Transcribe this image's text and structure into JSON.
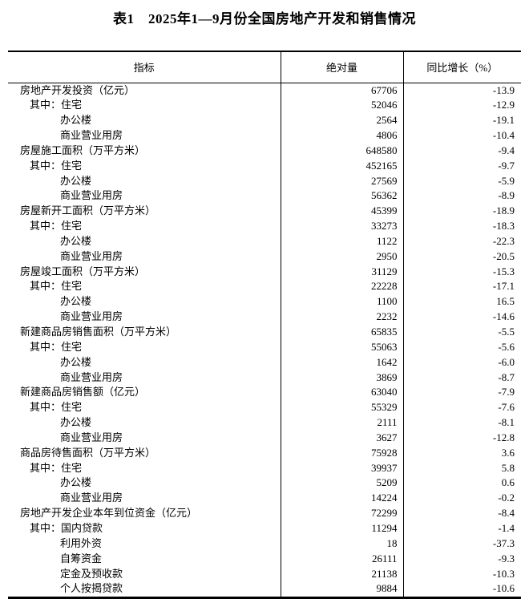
{
  "title": "表1　2025年1—9月份全国房地产开发和销售情况",
  "table": {
    "headers": [
      "指标",
      "绝对量",
      "同比增长（%）"
    ],
    "rows": [
      {
        "indicator": "房地产开发投资（亿元）",
        "indent": 0,
        "absolute": "67706",
        "growth": "-13.9"
      },
      {
        "indicator": "其中：住宅",
        "indent": 1,
        "absolute": "52046",
        "growth": "-12.9"
      },
      {
        "indicator": "办公楼",
        "indent": 2,
        "absolute": "2564",
        "growth": "-19.1"
      },
      {
        "indicator": "商业营业用房",
        "indent": 2,
        "absolute": "4806",
        "growth": "-10.4"
      },
      {
        "indicator": "房屋施工面积（万平方米）",
        "indent": 0,
        "absolute": "648580",
        "growth": "-9.4"
      },
      {
        "indicator": "其中：住宅",
        "indent": 1,
        "absolute": "452165",
        "growth": "-9.7"
      },
      {
        "indicator": "办公楼",
        "indent": 2,
        "absolute": "27569",
        "growth": "-5.9"
      },
      {
        "indicator": "商业营业用房",
        "indent": 2,
        "absolute": "56362",
        "growth": "-8.9"
      },
      {
        "indicator": "房屋新开工面积（万平方米）",
        "indent": 0,
        "absolute": "45399",
        "growth": "-18.9"
      },
      {
        "indicator": "其中：住宅",
        "indent": 1,
        "absolute": "33273",
        "growth": "-18.3"
      },
      {
        "indicator": "办公楼",
        "indent": 2,
        "absolute": "1122",
        "growth": "-22.3"
      },
      {
        "indicator": "商业营业用房",
        "indent": 2,
        "absolute": "2950",
        "growth": "-20.5"
      },
      {
        "indicator": "房屋竣工面积（万平方米）",
        "indent": 0,
        "absolute": "31129",
        "growth": "-15.3"
      },
      {
        "indicator": "其中：住宅",
        "indent": 1,
        "absolute": "22228",
        "growth": "-17.1"
      },
      {
        "indicator": "办公楼",
        "indent": 2,
        "absolute": "1100",
        "growth": "16.5"
      },
      {
        "indicator": "商业营业用房",
        "indent": 2,
        "absolute": "2232",
        "growth": "-14.6"
      },
      {
        "indicator": "新建商品房销售面积（万平方米）",
        "indent": 0,
        "absolute": "65835",
        "growth": "-5.5"
      },
      {
        "indicator": "其中：住宅",
        "indent": 1,
        "absolute": "55063",
        "growth": "-5.6"
      },
      {
        "indicator": "办公楼",
        "indent": 2,
        "absolute": "1642",
        "growth": "-6.0"
      },
      {
        "indicator": "商业营业用房",
        "indent": 2,
        "absolute": "3869",
        "growth": "-8.7"
      },
      {
        "indicator": "新建商品房销售额（亿元）",
        "indent": 0,
        "absolute": "63040",
        "growth": "-7.9"
      },
      {
        "indicator": "其中：住宅",
        "indent": 1,
        "absolute": "55329",
        "growth": "-7.6"
      },
      {
        "indicator": "办公楼",
        "indent": 2,
        "absolute": "2111",
        "growth": "-8.1"
      },
      {
        "indicator": "商业营业用房",
        "indent": 2,
        "absolute": "3627",
        "growth": "-12.8"
      },
      {
        "indicator": "商品房待售面积（万平方米）",
        "indent": 0,
        "absolute": "75928",
        "growth": "3.6"
      },
      {
        "indicator": "其中：住宅",
        "indent": 1,
        "absolute": "39937",
        "growth": "5.8"
      },
      {
        "indicator": "办公楼",
        "indent": 2,
        "absolute": "5209",
        "growth": "0.6"
      },
      {
        "indicator": "商业营业用房",
        "indent": 2,
        "absolute": "14224",
        "growth": "-0.2"
      },
      {
        "indicator": "房地产开发企业本年到位资金（亿元）",
        "indent": 0,
        "absolute": "72299",
        "growth": "-8.4"
      },
      {
        "indicator": "其中：国内贷款",
        "indent": 1,
        "absolute": "11294",
        "growth": "-1.4"
      },
      {
        "indicator": "利用外资",
        "indent": 2,
        "absolute": "18",
        "growth": "-37.3"
      },
      {
        "indicator": "自筹资金",
        "indent": 2,
        "absolute": "26111",
        "growth": "-9.3"
      },
      {
        "indicator": "定金及预收款",
        "indent": 2,
        "absolute": "21138",
        "growth": "-10.3"
      },
      {
        "indicator": "个人按揭贷款",
        "indent": 2,
        "absolute": "9884",
        "growth": "-10.6"
      }
    ]
  },
  "colors": {
    "text": "#000000",
    "background": "#ffffff",
    "border": "#000000"
  }
}
